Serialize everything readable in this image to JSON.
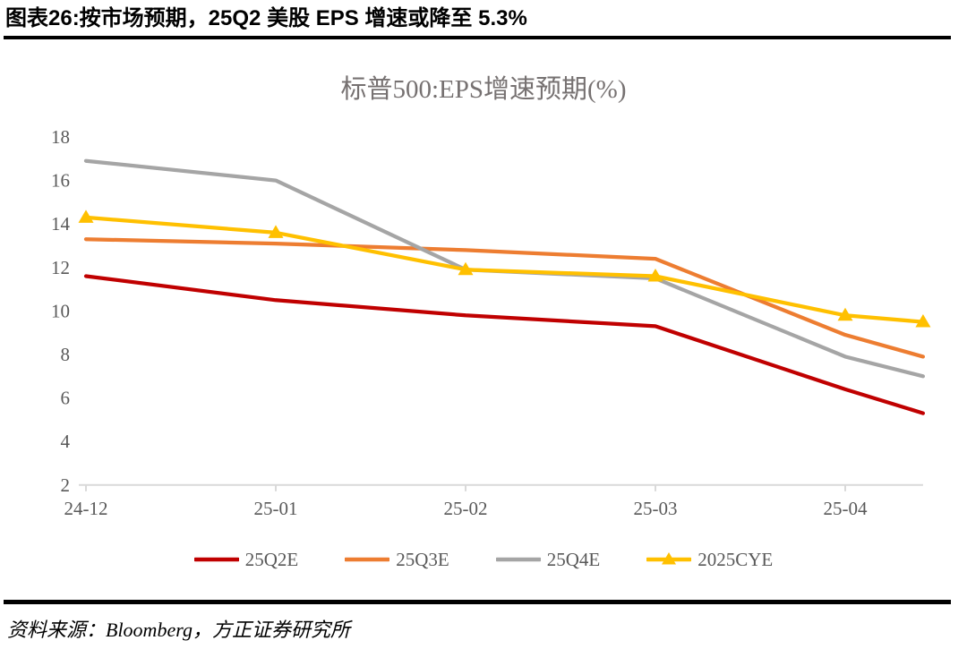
{
  "header": {
    "title": "图表26:按市场预期，25Q2 美股 EPS 增速或降至 5.3%"
  },
  "chart": {
    "title": "标普500:EPS增速预期(%)"
  },
  "chart_data": {
    "type": "line",
    "title": "标普500:EPS增速预期(%)",
    "categories": [
      "24-12",
      "25-01",
      "25-02",
      "25-03",
      "25-04"
    ],
    "x_positions": [
      0,
      1,
      2,
      3,
      4,
      4.41
    ],
    "series": [
      {
        "name": "25Q2E",
        "color": "#C00000",
        "marker": "none",
        "values": [
          11.6,
          10.5,
          9.8,
          9.3,
          6.4,
          5.3
        ]
      },
      {
        "name": "25Q3E",
        "color": "#ED7D31",
        "marker": "none",
        "values": [
          13.3,
          13.1,
          12.8,
          12.4,
          8.9,
          7.9
        ]
      },
      {
        "name": "25Q4E",
        "color": "#A5A5A5",
        "marker": "none",
        "values": [
          16.9,
          16.0,
          11.9,
          11.5,
          7.9,
          7.0
        ]
      },
      {
        "name": "2025CYE",
        "color": "#FFC000",
        "marker": "triangle",
        "values": [
          14.3,
          13.6,
          11.9,
          11.6,
          9.8,
          9.5
        ]
      }
    ],
    "ylim": [
      2,
      18
    ],
    "ytick_step": 2,
    "grid": false,
    "legend_position": "bottom"
  },
  "style_colors": {
    "axis_line": "#D9D9D9",
    "tick_label": "#595959",
    "chart_title": "#767171"
  },
  "footer": {
    "source": "资料来源：Bloomberg，方正证券研究所"
  }
}
